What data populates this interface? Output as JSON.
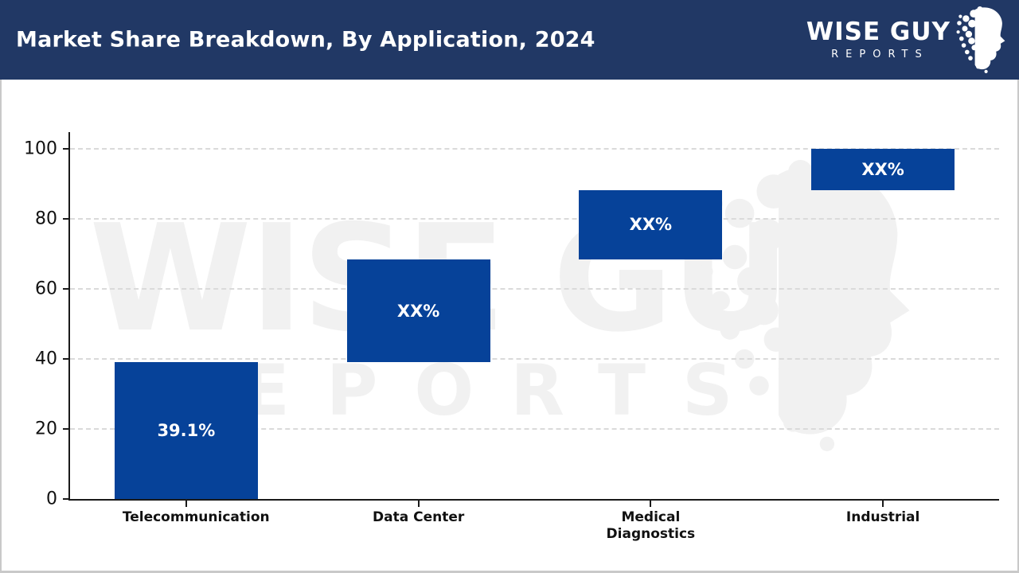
{
  "header": {
    "title": "Market Share Breakdown, By Application, 2024",
    "logo": {
      "line1": "WISE GUY",
      "line2": "REPORTS"
    }
  },
  "watermark": {
    "line1": "WISE GUY",
    "line2": "REPORTS"
  },
  "theme": {
    "header_bg": "#213865",
    "bar_color": "#064299",
    "grid_color": "#dadada",
    "watermark_color": "#f1f1f1",
    "label_color": "#ffffff",
    "border_color": "#c9c9c9"
  },
  "chart_data": {
    "type": "bar",
    "subtype": "waterfall",
    "title": "Market Share Breakdown, By Application, 2024",
    "categories": [
      "Telecommunication",
      "Data Center",
      "Medical Diagnostics",
      "Industrial"
    ],
    "series": [
      {
        "name": "Market share (%)",
        "segments": [
          {
            "category": "Telecommunication",
            "start": 0,
            "end": 39.1,
            "label": "39.1%"
          },
          {
            "category": "Data Center",
            "start": 39.1,
            "end": 68.4,
            "label": "XX%"
          },
          {
            "category": "Medical Diagnostics",
            "start": 68.4,
            "end": 88.2,
            "label": "XX%"
          },
          {
            "category": "Industrial",
            "start": 88.2,
            "end": 100,
            "label": "XX%"
          }
        ]
      }
    ],
    "xlabel": "",
    "ylabel": "",
    "ylim": [
      0,
      100
    ],
    "yticks": [
      0,
      20,
      40,
      60,
      80,
      100
    ],
    "grid": "horizontal-dashed",
    "legend": "none"
  }
}
